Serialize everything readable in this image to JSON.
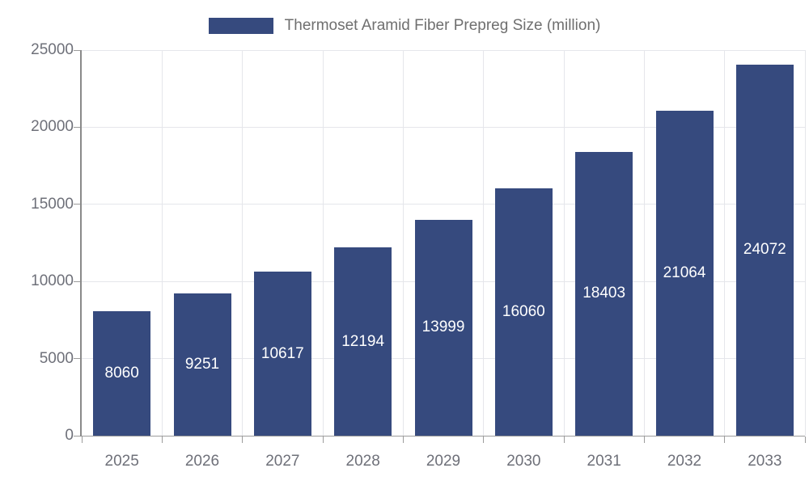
{
  "legend": {
    "label": "Thermoset Aramid Fiber Prepreg Size (million)"
  },
  "chart_data": {
    "type": "bar",
    "title": "Thermoset Aramid Fiber Prepreg Size (million)",
    "categories": [
      "2025",
      "2026",
      "2027",
      "2028",
      "2029",
      "2030",
      "2031",
      "2032",
      "2033"
    ],
    "values": [
      8060,
      9251,
      10617,
      12194,
      13999,
      16060,
      18403,
      21064,
      24072
    ],
    "xlabel": "",
    "ylabel": "",
    "ylim": [
      0,
      25000
    ],
    "yticks": [
      0,
      5000,
      10000,
      15000,
      20000,
      25000
    ],
    "grid": true,
    "legend_position": "top"
  },
  "colors": {
    "bar": "#364A7E",
    "grid_line": "#e5e6eb",
    "y_axis_line": "#8a8a8a",
    "x_axis_line": "#9c9c9c",
    "tick_mark": "#9c9c9c",
    "axis_label": "#6e7079",
    "legend_text": "#6f6f6f",
    "value_label": "#ffffff"
  }
}
